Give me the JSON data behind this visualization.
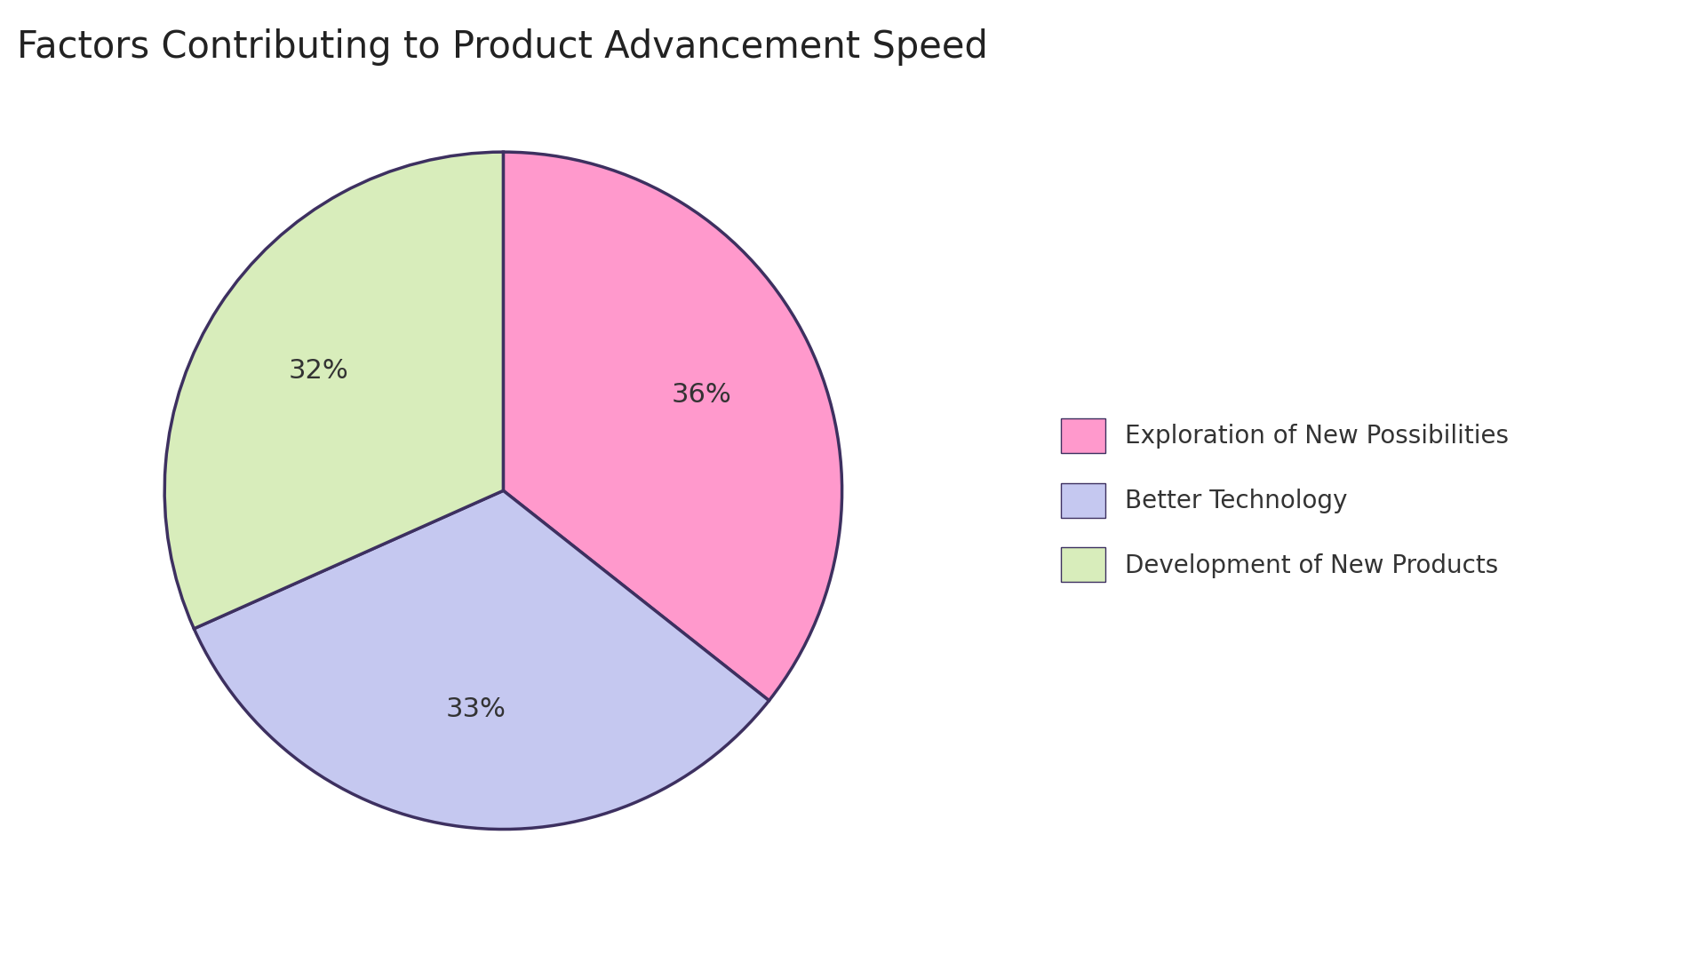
{
  "title": "Factors Contributing to Product Advancement Speed",
  "labels": [
    "Exploration of New Possibilities",
    "Better Technology",
    "Development of New Products"
  ],
  "values": [
    36,
    33,
    32
  ],
  "colors": [
    "#FF99CC",
    "#C5C8F0",
    "#D8EDBB"
  ],
  "edge_color": "#3D3060",
  "edge_width": 2.5,
  "startangle": 90,
  "title_fontsize": 30,
  "pct_fontsize": 22,
  "legend_fontsize": 20,
  "background_color": "#FFFFFF"
}
